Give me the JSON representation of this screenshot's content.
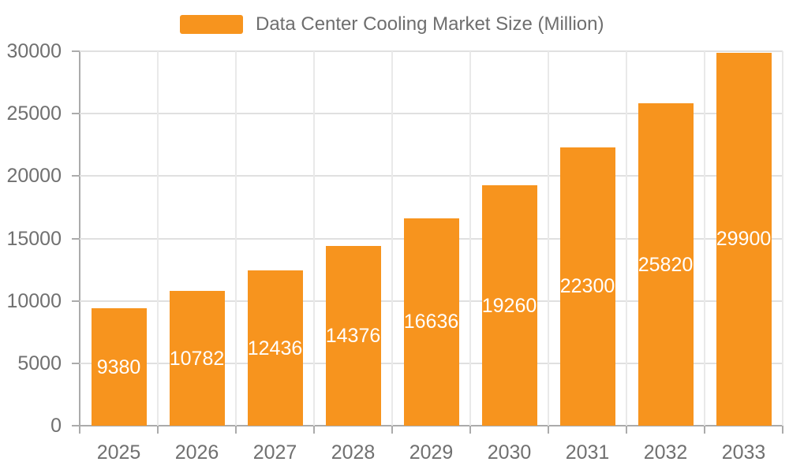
{
  "legend": {
    "label": "Data Center Cooling Market Size (Million)"
  },
  "chart_data": {
    "type": "bar",
    "title": "Data Center Cooling Market Size (Million)",
    "categories": [
      "2025",
      "2026",
      "2027",
      "2028",
      "2029",
      "2030",
      "2031",
      "2032",
      "2033"
    ],
    "values": [
      9380,
      10782,
      12436,
      14376,
      16636,
      19260,
      22300,
      25820,
      29900
    ],
    "xlabel": "",
    "ylabel": "",
    "ylim": [
      0,
      30000
    ],
    "yticks": [
      0,
      5000,
      10000,
      15000,
      20000,
      25000,
      30000
    ],
    "grid": true,
    "legend_position": "top-center",
    "value_labels": "inside-center",
    "colors": {
      "bar": "#F7941E",
      "value_label": "#FFFFFF",
      "axis_text": "#707070",
      "legend_text": "#6E6E6E",
      "axis_line": "#ABABAB",
      "h_gridline": "#E0E0E0",
      "v_gridline": "#E9E9E9",
      "background": "#FFFFFF"
    }
  }
}
